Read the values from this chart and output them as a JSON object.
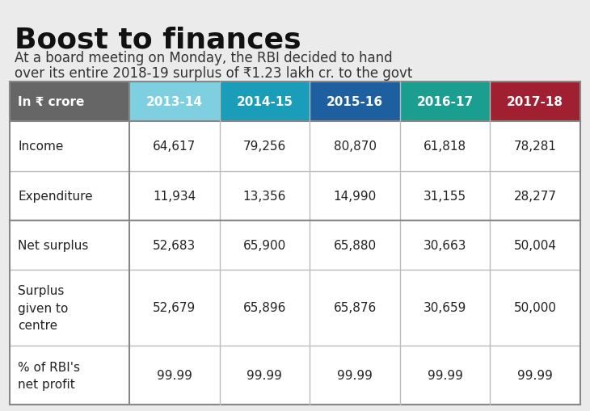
{
  "title": "Boost to finances",
  "subtitle_line1": "At a board meeting on Monday, the RBI decided to hand",
  "subtitle_line2": "over its entire 2018-19 surplus of ₹1.23 lakh cr. to the govt",
  "header_label": "In ₹ crore",
  "columns": [
    "2013-14",
    "2014-15",
    "2015-16",
    "2016-17",
    "2017-18"
  ],
  "col_colors": [
    "#7ecfe0",
    "#1a9db8",
    "#1e5fa0",
    "#1a9e8f",
    "#a01f30"
  ],
  "rows": [
    {
      "label": "Income",
      "values": [
        "64,617",
        "79,256",
        "80,870",
        "61,818",
        "78,281"
      ]
    },
    {
      "label": "Expenditure",
      "values": [
        "11,934",
        "13,356",
        "14,990",
        "31,155",
        "28,277"
      ]
    },
    {
      "label": "Net surplus",
      "values": [
        "52,683",
        "65,900",
        "65,880",
        "30,663",
        "50,004"
      ]
    },
    {
      "label": "Surplus\ngiven to\ncentre",
      "values": [
        "52,679",
        "65,896",
        "65,876",
        "30,659",
        "50,000"
      ]
    },
    {
      "label": "% of RBI's\nnet profit",
      "values": [
        "99.99",
        "99.99",
        "99.99",
        "99.99",
        "99.99"
      ]
    }
  ],
  "bg_color": "#ebebeb",
  "header_bg": "#666666",
  "header_text_color": "#ffffff",
  "data_text_color": "#222222",
  "row_bg_colors": [
    "#ffffff",
    "#ffffff",
    "#ffffff",
    "#ffffff",
    "#ffffff"
  ],
  "divider_color": "#bbbbbb",
  "thick_divider_after": [
    2
  ],
  "title_fontsize": 26,
  "subtitle_fontsize": 12,
  "header_fontsize": 11,
  "data_fontsize": 11
}
